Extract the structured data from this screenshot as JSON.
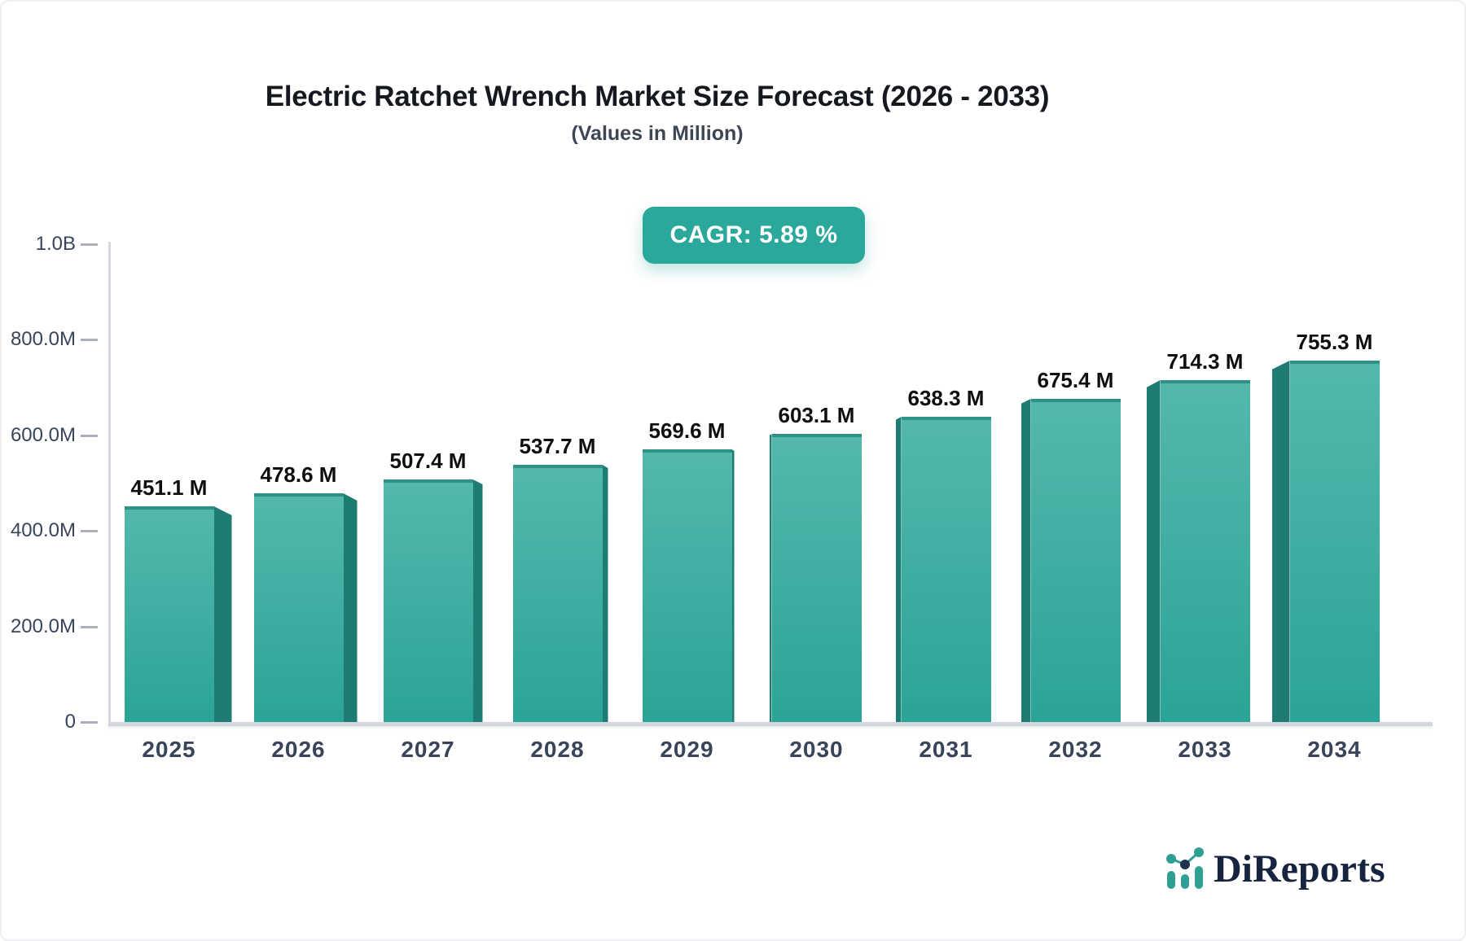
{
  "chart_data": {
    "type": "bar",
    "title": "Electric Ratchet Wrench Market Size Forecast (2026 - 2033)",
    "subtitle": "(Values in Million)",
    "cagr_annotation": "CAGR: 5.89 %",
    "categories": [
      "2025",
      "2026",
      "2027",
      "2028",
      "2029",
      "2030",
      "2031",
      "2032",
      "2033",
      "2034"
    ],
    "values": [
      451.1,
      478.6,
      507.4,
      537.7,
      569.6,
      603.1,
      638.3,
      675.4,
      714.3,
      755.3
    ],
    "value_labels": [
      "451.1 M",
      "478.6 M",
      "507.4 M",
      "537.7 M",
      "569.6 M",
      "603.1 M",
      "638.3 M",
      "675.4 M",
      "714.3 M",
      "755.3 M"
    ],
    "unit": "Million USD",
    "ylim": [
      0,
      1000
    ],
    "yticks": [
      {
        "v": 0,
        "label": "0"
      },
      {
        "v": 200,
        "label": "200.0M"
      },
      {
        "v": 400,
        "label": "400.0M"
      },
      {
        "v": 600,
        "label": "600.0M"
      },
      {
        "v": 800,
        "label": "800.0M"
      },
      {
        "v": 1000,
        "label": "1.0B"
      }
    ],
    "grid": "off",
    "legend": "none",
    "bar_style": "3d-perspective, sides taper toward center"
  },
  "logo": {
    "text": "DiReports"
  },
  "colors": {
    "face_top": "#53b8ab",
    "face_bot": "#2aa496",
    "side": "#1e7c72",
    "top_edge": "#2e9186",
    "badge": "#2aa89b",
    "baseline": "#d2d6de",
    "axis_text": "#39445a",
    "title": "#15191f",
    "subtitle": "#3d4654",
    "logo_navy": "#16243f",
    "logo_teal": "#2f9e93"
  }
}
